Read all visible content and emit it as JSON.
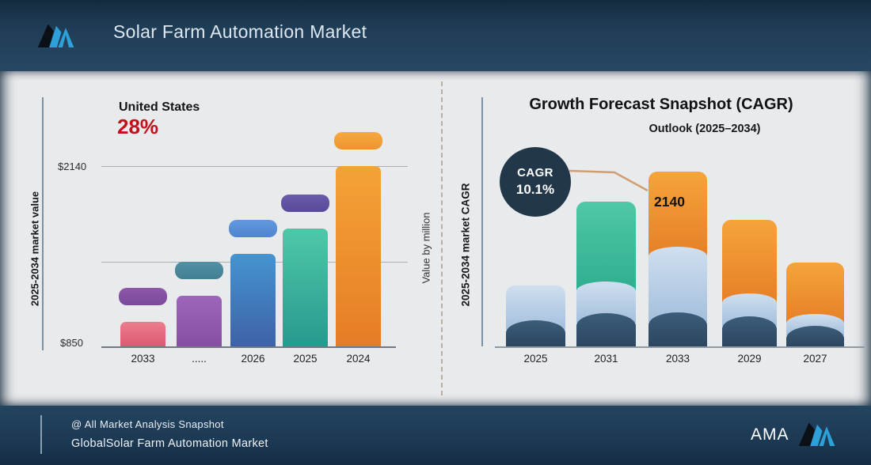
{
  "header": {
    "title": "Solar Farm Automation Market",
    "logo_name": "AMA mountain logo",
    "logo_colors": {
      "dark": "#0b1016",
      "blue": "#2da0da"
    }
  },
  "chart_data": [
    {
      "type": "bar",
      "panel": "left",
      "title": "United States",
      "highlight": "28%",
      "highlight_color": "#c1121c",
      "ylabel": "2025-2034 market value",
      "ylabel_right": "Value by million",
      "ytick_labels": [
        "$2140",
        "$850"
      ],
      "ylim": [
        850,
        2140
      ],
      "grid": true,
      "categories": [
        "2033",
        ".....",
        "2026",
        "2025",
        "2024"
      ],
      "values": [
        1025,
        1210,
        1510,
        1695,
        2140
      ],
      "bar_colors": [
        [
          "#ec7e8e",
          "#dc5a72"
        ],
        [
          "#9e66ba",
          "#874fa3"
        ],
        [
          "#4594d0",
          "#3e62a7"
        ],
        [
          "#4fc8a8",
          "#27998f"
        ],
        [
          "#f4a337",
          "#e67c26"
        ]
      ],
      "float_colors": [
        [
          "#8d58ab",
          "#7b4a99"
        ],
        [
          "#5290a4",
          "#417f93"
        ],
        [
          "#6199e0",
          "#4f84cf"
        ],
        [
          "#6a5caa",
          "#584a98"
        ],
        [
          "#f6a93e",
          "#eb9530"
        ]
      ]
    },
    {
      "type": "stacked-bar",
      "panel": "right",
      "title": "Growth Forecast Snapshot (CAGR)",
      "subtitle": "Outlook (2025–2034)",
      "ylabel": "2025-2034 market CAGR",
      "badge": {
        "line1": "CAGR",
        "line2": "10.1%",
        "color": "#22384a"
      },
      "annotation": "2140",
      "annotation_target": "2033",
      "connector_color": "#cf9e73",
      "categories": [
        "2025",
        "2031",
        "2033",
        "2029",
        "2027"
      ],
      "bars": [
        {
          "label": "2025",
          "segments": [
            {
              "color": "navy",
              "h": 33
            },
            {
              "color": "lightblue",
              "h": 44
            }
          ]
        },
        {
          "label": "2031",
          "segments": [
            {
              "color": "navy",
              "h": 42
            },
            {
              "color": "lightblue",
              "h": 40
            },
            {
              "color": "green",
              "h": 101
            }
          ]
        },
        {
          "label": "2033",
          "segments": [
            {
              "color": "navy",
              "h": 43
            },
            {
              "color": "lightblue",
              "h": 83
            },
            {
              "color": "orange",
              "h": 95
            }
          ]
        },
        {
          "label": "2029",
          "segments": [
            {
              "color": "navy",
              "h": 38
            },
            {
              "color": "lightblue",
              "h": 29
            },
            {
              "color": "orange",
              "h": 93
            }
          ]
        },
        {
          "label": "2027",
          "segments": [
            {
              "color": "navy",
              "h": 26
            },
            {
              "color": "lightblue",
              "h": 15
            },
            {
              "color": "orange",
              "h": 65
            }
          ]
        }
      ],
      "palette": {
        "navy": [
          "#3c5d7a",
          "#2b4660"
        ],
        "lightblue": [
          "#cfdfef",
          "#a4bfdc"
        ],
        "green": [
          "#4fc8a6",
          "#2fae8e"
        ],
        "orange": [
          "#f5a43c",
          "#e67f27"
        ]
      }
    }
  ],
  "footer": {
    "line1": "@ All Market Analysis Snapshot",
    "line2": "GlobalSolar Farm Automation Market",
    "brand": "AMA"
  }
}
